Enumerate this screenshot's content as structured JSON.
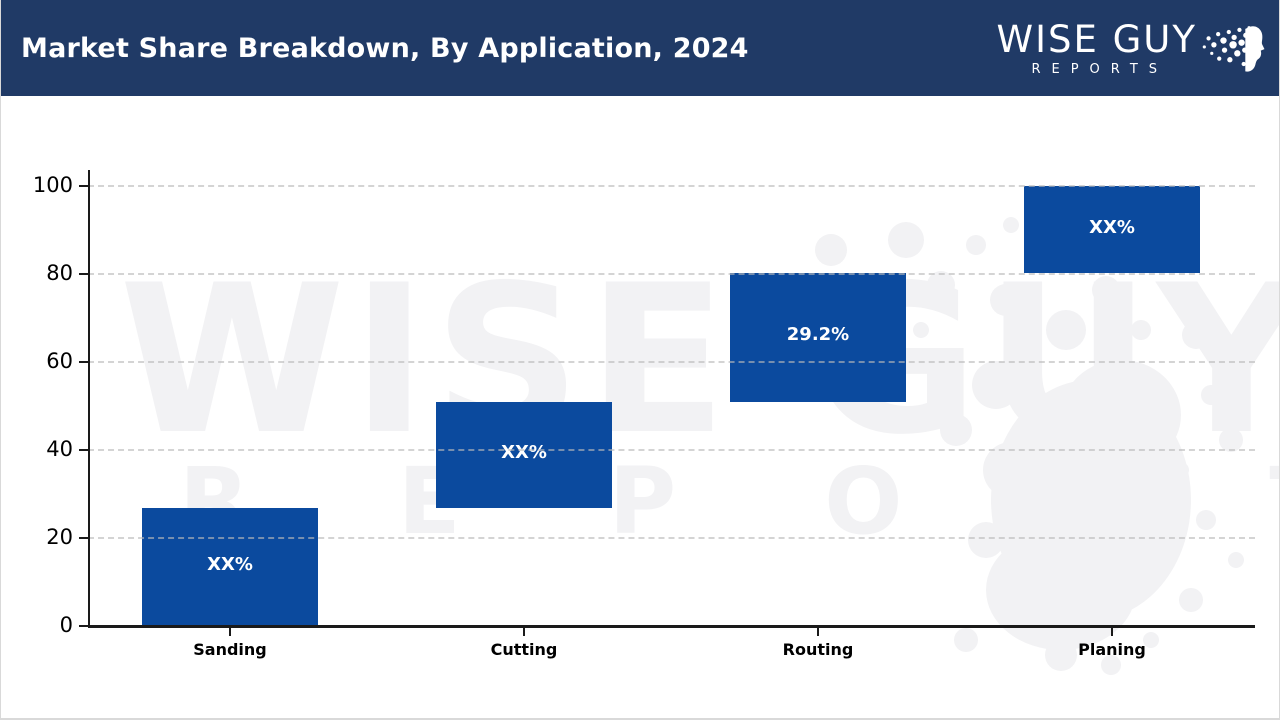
{
  "header": {
    "title": "Market Share Breakdown, By Application, 2024",
    "bg_color": "#203a66",
    "logo": {
      "line1": "WISE GUY",
      "line2": "REPORTS"
    }
  },
  "watermark": {
    "line1": "WISE GUY",
    "line2": "R E P O R T S"
  },
  "chart_data": {
    "type": "bar",
    "subtype": "waterfall",
    "title": "Market Share Breakdown, By Application, 2024",
    "categories": [
      "Sanding",
      "Cutting",
      "Routing",
      "Planing"
    ],
    "segments": [
      {
        "category": "Sanding",
        "start": 0,
        "end": 26.8,
        "value": 26.8,
        "label": "XX%"
      },
      {
        "category": "Cutting",
        "start": 26.8,
        "end": 51.0,
        "value": 24.2,
        "label": "XX%"
      },
      {
        "category": "Routing",
        "start": 51.0,
        "end": 80.2,
        "value": 29.2,
        "label": "29.2%"
      },
      {
        "category": "Planing",
        "start": 80.2,
        "end": 100,
        "value": 19.8,
        "label": "XX%"
      }
    ],
    "yticks": [
      0,
      20,
      40,
      60,
      80,
      100
    ],
    "ylim": [
      0,
      100
    ],
    "unit": "%",
    "xlabel": "",
    "ylabel": "",
    "legend": null,
    "grid": "horizontal-dashed",
    "bar_color": "#0b4a9e",
    "bar_label_color": "#ffffff",
    "grid_color": "#d8d8d8",
    "axis_color": "#1a1a1a"
  }
}
